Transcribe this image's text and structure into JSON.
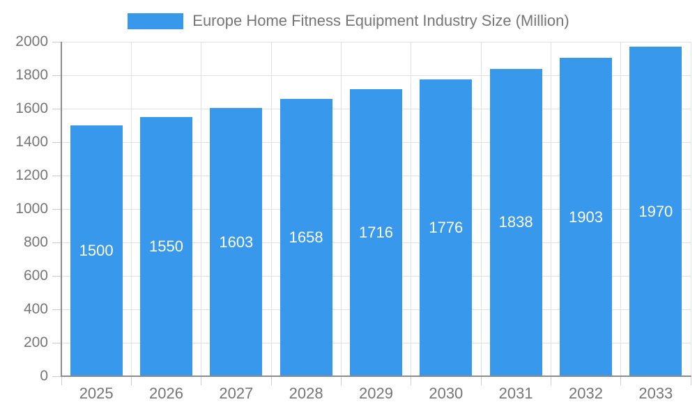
{
  "chart_data": {
    "type": "bar",
    "title": "Europe Home Fitness Equipment Industry Size (Million)",
    "categories": [
      "2025",
      "2026",
      "2027",
      "2028",
      "2029",
      "2030",
      "2031",
      "2032",
      "2033"
    ],
    "values": [
      1500,
      1550,
      1603,
      1658,
      1716,
      1776,
      1838,
      1903,
      1970
    ],
    "xlabel": "",
    "ylabel": "",
    "ylim": [
      0,
      2000
    ],
    "y_ticks": [
      0,
      200,
      400,
      600,
      800,
      1000,
      1200,
      1400,
      1600,
      1800,
      2000
    ],
    "grid": true,
    "legend_position": "top",
    "value_labels": "inside-center",
    "colors": {
      "bar": "#3899EC",
      "grid_line": "#E0E0E0",
      "axis_line": "#8C8C8C",
      "tick_mark": "#CCCCCC",
      "axis_text": "#757575",
      "value_text": "#FFFFFF",
      "background": "#FFFFFF"
    }
  }
}
